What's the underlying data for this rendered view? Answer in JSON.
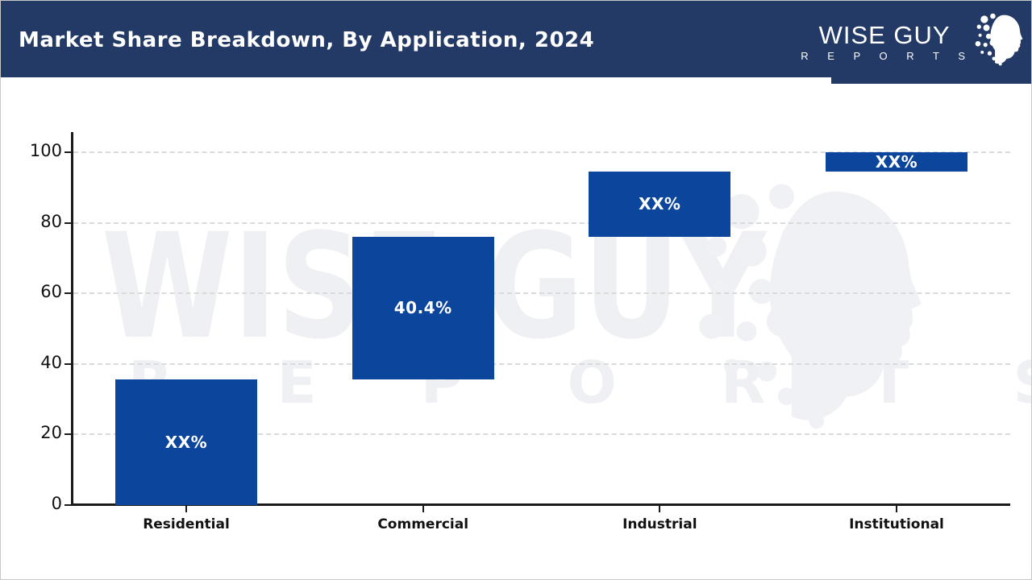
{
  "header": {
    "title": "Market Share Breakdown, By Application, 2024",
    "logo": {
      "line1": "WISE GUY",
      "line2": "R E P O R T S"
    }
  },
  "watermark": {
    "line1": "WISE GUY",
    "line2": "R E P O R T S"
  },
  "chart_data": {
    "type": "bar",
    "subtype": "waterfall",
    "title": "Market Share Breakdown, By Application, 2024",
    "xlabel": "",
    "ylabel": "",
    "categories": [
      "Residential",
      "Commercial",
      "Industrial",
      "Institutional"
    ],
    "segments": [
      {
        "category": "Residential",
        "start": 0,
        "end": 35.6,
        "value": 35.6,
        "label": "XX%"
      },
      {
        "category": "Commercial",
        "start": 35.6,
        "end": 76.0,
        "value": 40.4,
        "label": "40.4%"
      },
      {
        "category": "Industrial",
        "start": 76.0,
        "end": 94.6,
        "value": 18.6,
        "label": "XX%"
      },
      {
        "category": "Institutional",
        "start": 94.6,
        "end": 100.0,
        "value": 5.4,
        "label": "XX%"
      }
    ],
    "yticks": [
      0,
      20,
      40,
      60,
      80,
      100
    ],
    "ylim": [
      0,
      105
    ],
    "grid": "horizontal dashed",
    "legend": "none",
    "bar_color": "#0b459c",
    "bar_label_color": "#ffffff"
  },
  "colors": {
    "header_background": "#233a66",
    "bar_blue": "#0b459c",
    "gridline": "#d9dadb",
    "axis": "#1a1a1a",
    "watermark": "#eff0f3",
    "title_text": "#ffffff"
  }
}
